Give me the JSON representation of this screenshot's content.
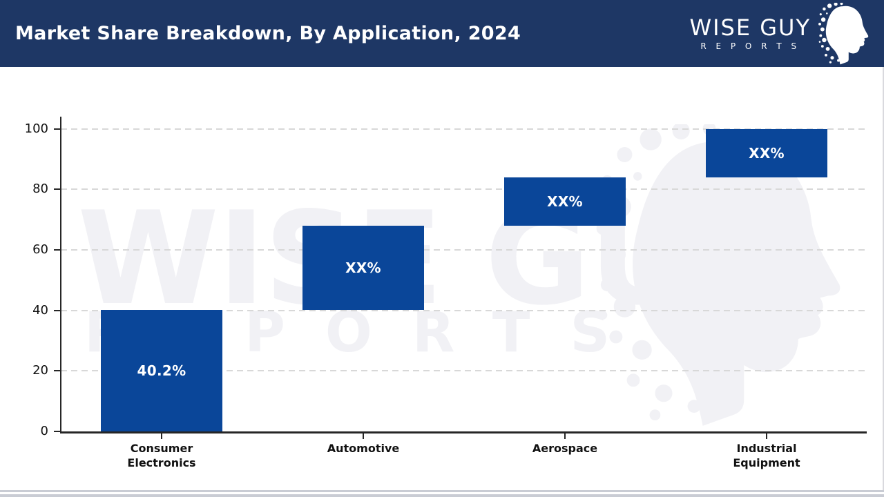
{
  "header": {
    "title": "Market Share Breakdown, By Application, 2024",
    "brand": {
      "name": "WISE GUY",
      "tagline": "R E P O R T S"
    }
  },
  "watermark": {
    "line1": "WISE GUY",
    "line2": "REPORTS"
  },
  "colors": {
    "header_bg": "#1e3765",
    "bar": "#0a4699",
    "bar_label": "#ffffff",
    "grid": "#d8d8d8",
    "axis": "#262626",
    "watermark": "#f1f1f5"
  },
  "chart_data": {
    "type": "bar",
    "variant": "floating-segment (waterfall style market-share breakdown)",
    "title": "Market Share Breakdown, By Application, 2024",
    "xlabel": "",
    "ylabel": "",
    "categories": [
      "Consumer Electronics",
      "Automotive",
      "Aerospace",
      "Industrial Equipment"
    ],
    "category_lines": [
      [
        "Consumer",
        "Electronics"
      ],
      [
        "Automotive"
      ],
      [
        "Aerospace"
      ],
      [
        "Industrial",
        "Equipment"
      ]
    ],
    "segments": [
      {
        "category": "Consumer Electronics",
        "start": 0,
        "end": 40.2,
        "label": "40.2%"
      },
      {
        "category": "Automotive",
        "start": 40.2,
        "end": 68,
        "label": "XX%"
      },
      {
        "category": "Aerospace",
        "start": 68,
        "end": 84,
        "label": "XX%"
      },
      {
        "category": "Industrial Equipment",
        "start": 84,
        "end": 100,
        "label": "XX%"
      }
    ],
    "y_ticks": [
      0,
      20,
      40,
      60,
      80,
      100
    ],
    "ylim": [
      0,
      104
    ],
    "grid": "horizontal-dashed",
    "legend": "none"
  }
}
